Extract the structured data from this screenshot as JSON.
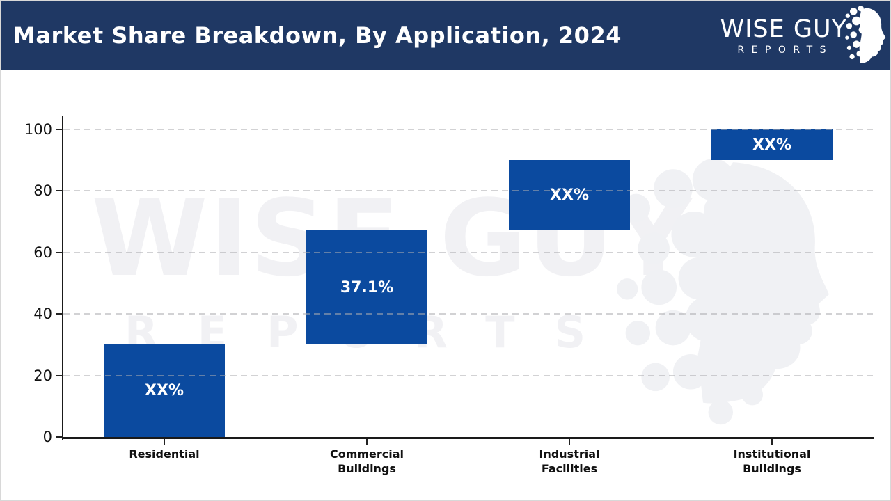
{
  "header": {
    "title": "Market Share Breakdown, By Application, 2024",
    "background": "#1f3864",
    "logo": {
      "line1": "WISE GUY",
      "line2": "REPORTS"
    }
  },
  "watermark": {
    "line1": "WISE GUY",
    "line2": "REPORTS"
  },
  "chart_data": {
    "type": "bar",
    "subtype": "floating-waterfall",
    "title": "Market Share Breakdown, By Application, 2024",
    "categories": [
      "Residential",
      "Commercial\nBuildings",
      "Industrial\nFacilities",
      "Institutional\nBuildings"
    ],
    "bars": [
      {
        "category": "Residential",
        "start": 0,
        "end": 30,
        "label": "XX%"
      },
      {
        "category": "Commercial Buildings",
        "start": 30,
        "end": 67.1,
        "label": "37.1%"
      },
      {
        "category": "Industrial Facilities",
        "start": 67.1,
        "end": 90,
        "label": "XX%"
      },
      {
        "category": "Institutional Buildings",
        "start": 90,
        "end": 100,
        "label": "XX%"
      }
    ],
    "y_ticks": [
      0,
      20,
      40,
      60,
      80,
      100
    ],
    "ylim": [
      0,
      100
    ],
    "xlabel": "",
    "ylabel": "",
    "grid": "horizontal-dashed",
    "legend": "none",
    "bar_color": "#0b4a9f",
    "bar_label_color": "#ffffff",
    "grid_color": "#e2e2e6",
    "axis_color": "#1a1a1a",
    "watermark_color": "#f1f1f4"
  }
}
